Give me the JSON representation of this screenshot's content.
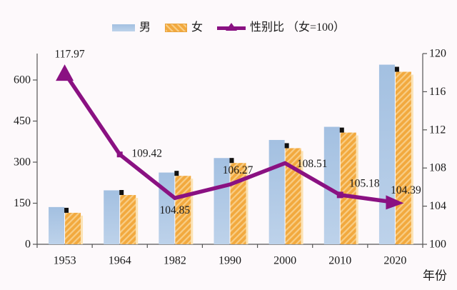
{
  "chart_data": {
    "type": "combo",
    "categories": [
      "1953",
      "1964",
      "1982",
      "1990",
      "2000",
      "2010",
      "2020"
    ],
    "series": [
      {
        "name": "男",
        "type": "bar",
        "axis": "left",
        "values": [
          136,
          197,
          262,
          315,
          381,
          429,
          656
        ]
      },
      {
        "name": "女",
        "type": "bar",
        "axis": "left",
        "values": [
          115,
          180,
          250,
          297,
          351,
          408,
          630
        ]
      },
      {
        "name": "性别比（女=100）",
        "type": "line",
        "axis": "right",
        "values": [
          117.97,
          109.42,
          104.85,
          106.27,
          108.51,
          105.18,
          104.39
        ]
      }
    ],
    "point_labels": [
      "117.97",
      "109.42",
      "104.85",
      "106.27",
      "108.51",
      "105.18",
      "104.39"
    ],
    "left_axis_ticks": [
      0,
      150,
      300,
      450,
      600
    ],
    "left_axis_range": [
      0,
      696
    ],
    "right_axis_ticks": [
      100,
      104,
      108,
      112,
      116,
      120
    ],
    "right_axis_range": [
      100,
      120
    ],
    "xlabel": "年份",
    "legend": [
      "男",
      "女",
      "性别比 （女=100）"
    ],
    "legend_position": "top",
    "grid": false
  },
  "colors": {
    "male_bar_top": "#a3c0e1",
    "male_bar_bottom": "#bdd2ea",
    "female_bar": "#f2a93e",
    "female_hatch": "#f8cd85",
    "female_edge_highlight": "#fbe3b5",
    "ratio_line": "#8a1182",
    "corner_marker": "#111111",
    "background": "#fdf9fb",
    "axis": "#555555",
    "text": "#1a1a1a"
  }
}
